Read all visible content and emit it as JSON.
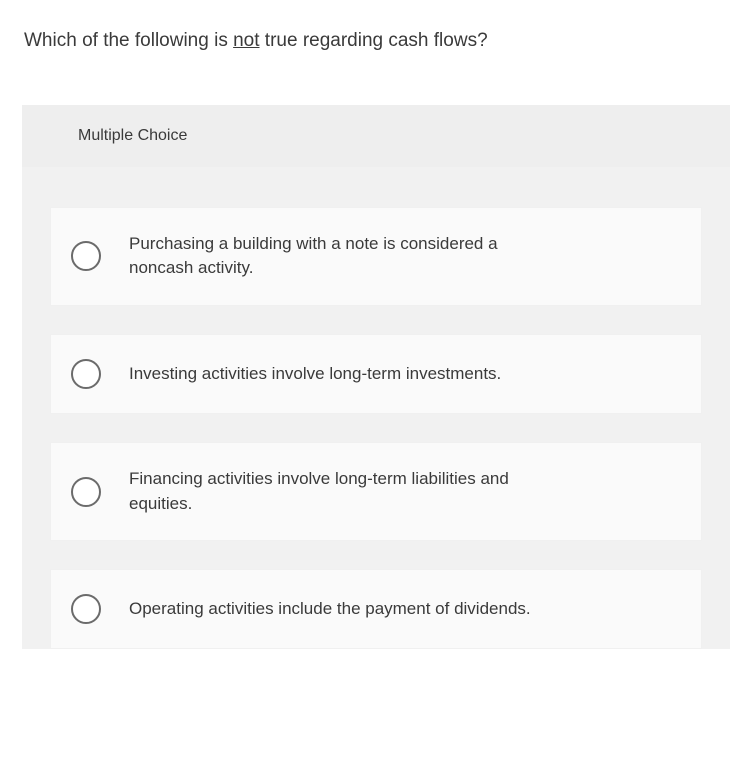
{
  "question": {
    "prefix": "Which of the following is ",
    "underlined": "not",
    "suffix": " true regarding cash flows?"
  },
  "section_label": "Multiple Choice",
  "options": [
    {
      "text": "Purchasing a building with a note is considered a noncash activity."
    },
    {
      "text": "Investing activities involve long-term investments."
    },
    {
      "text": "Financing activities involve long-term liabilities and equities."
    },
    {
      "text": "Operating activities include the payment of dividends."
    }
  ],
  "colors": {
    "text": "#3a3a3a",
    "panel_bg": "#f1f1f1",
    "header_bg": "#eeeeee",
    "option_bg": "#fafafa",
    "radio_border": "#6b6b6b",
    "page_bg": "#ffffff"
  }
}
